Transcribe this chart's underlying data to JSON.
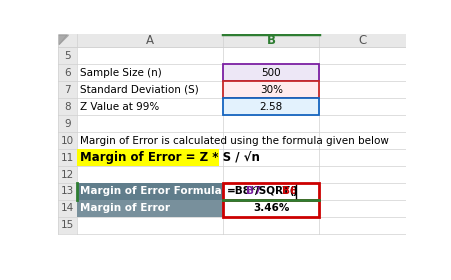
{
  "bg_color": "#ffffff",
  "grid_line_color": "#d0d0d0",
  "col_row_header_bg": "#e8e8e8",
  "col_row_header_text": "#555555",
  "row6_A": "Sample Size (n)",
  "row6_B": "500",
  "row7_A": "Standard Deviation (S)",
  "row7_B": "30%",
  "row8_A": "Z Value at 99%",
  "row8_B": "2.58",
  "row10_A": "Margin of Error is calculated using the formula given below",
  "row11_A": "Margin of Error = Z * S / √n",
  "row13_A": "Margin of Error Formula",
  "row13_B_parts": [
    "=B8*",
    "B7",
    "/SQRT(",
    "B6",
    ")"
  ],
  "row13_B_colors": [
    "#000000",
    "#7b1fa2",
    "#000000",
    "#cc0000",
    "#000000"
  ],
  "row14_A": "Margin of Error",
  "row14_B": "3.46%",
  "cell_B6_bg": "#ede7f6",
  "cell_B6_border": "#7b1fa2",
  "cell_B7_bg": "#ffebee",
  "cell_B7_border": "#c62828",
  "cell_B8_bg": "#e3f2fd",
  "cell_B8_border": "#1565c0",
  "row11_bg": "#ffff00",
  "row11_text_color": "#000000",
  "row13_A_bg": "#607d8b",
  "row13_A_text": "#ffffff",
  "row13_B_border_color": "#cc0000",
  "row13_B_bottom_border": "#2e7d32",
  "row13_B_bg": "#ffffff",
  "row14_A_bg": "#78909c",
  "row14_A_text": "#ffffff",
  "row14_B_bg": "#ffffff",
  "row14_B_border_color": "#cc0000",
  "col_B_header_color": "#2e7d32",
  "col_B_header_top_border": "#2e7d32",
  "font_size": 7.5,
  "header_font_size": 8.5
}
